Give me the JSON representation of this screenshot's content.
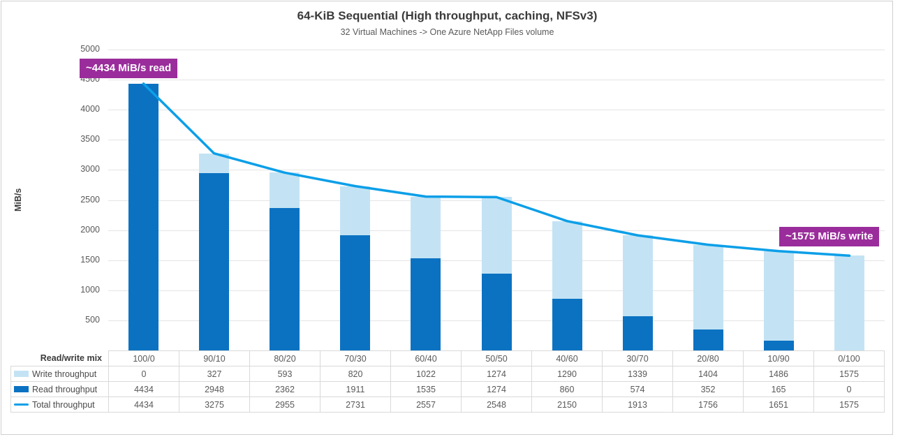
{
  "header": {
    "title": "64-KiB Sequential (High throughput, caching, NFSv3)",
    "subtitle": "32 Virtual Machines -> One Azure NetApp Files volume"
  },
  "colors": {
    "read_bar": "#0B72C2",
    "write_bar": "#C3E3F4",
    "total_line": "#0C9FE8",
    "annotation_bg": "#9A2D9B",
    "grid": "#E4E4E4",
    "table_border": "#D9D9D9"
  },
  "chart_data": {
    "type": "bar",
    "subtype": "stacked-bars-with-total-line",
    "title": "64-KiB Sequential (High throughput, caching, NFSv3)",
    "subtitle": "32 Virtual Machines -> One Azure NetApp Files volume",
    "xlabel": "",
    "ylabel": "MiB/s",
    "ylim": [
      0,
      5000
    ],
    "ytick_step": 500,
    "grid": true,
    "legend_position": "table-left",
    "categories_label": "Read/write mix",
    "categories": [
      "100/0",
      "90/10",
      "80/20",
      "70/30",
      "60/40",
      "50/50",
      "40/60",
      "30/70",
      "20/80",
      "10/90",
      "0/100"
    ],
    "series": [
      {
        "name": "Write throughput",
        "role": "write",
        "type": "bar",
        "values": [
          0,
          327,
          593,
          820,
          1022,
          1274,
          1290,
          1339,
          1404,
          1486,
          1575
        ]
      },
      {
        "name": "Read throughput",
        "role": "read",
        "type": "bar",
        "values": [
          4434,
          2948,
          2362,
          1911,
          1535,
          1274,
          860,
          574,
          352,
          165,
          0
        ]
      },
      {
        "name": "Total throughput",
        "role": "total",
        "type": "line",
        "values": [
          4434,
          3275,
          2955,
          2731,
          2557,
          2548,
          2150,
          1913,
          1756,
          1651,
          1575
        ]
      }
    ]
  },
  "annotations": [
    {
      "text": "~4434 MiB/s read"
    },
    {
      "text": "~1575 MiB/s write"
    }
  ]
}
